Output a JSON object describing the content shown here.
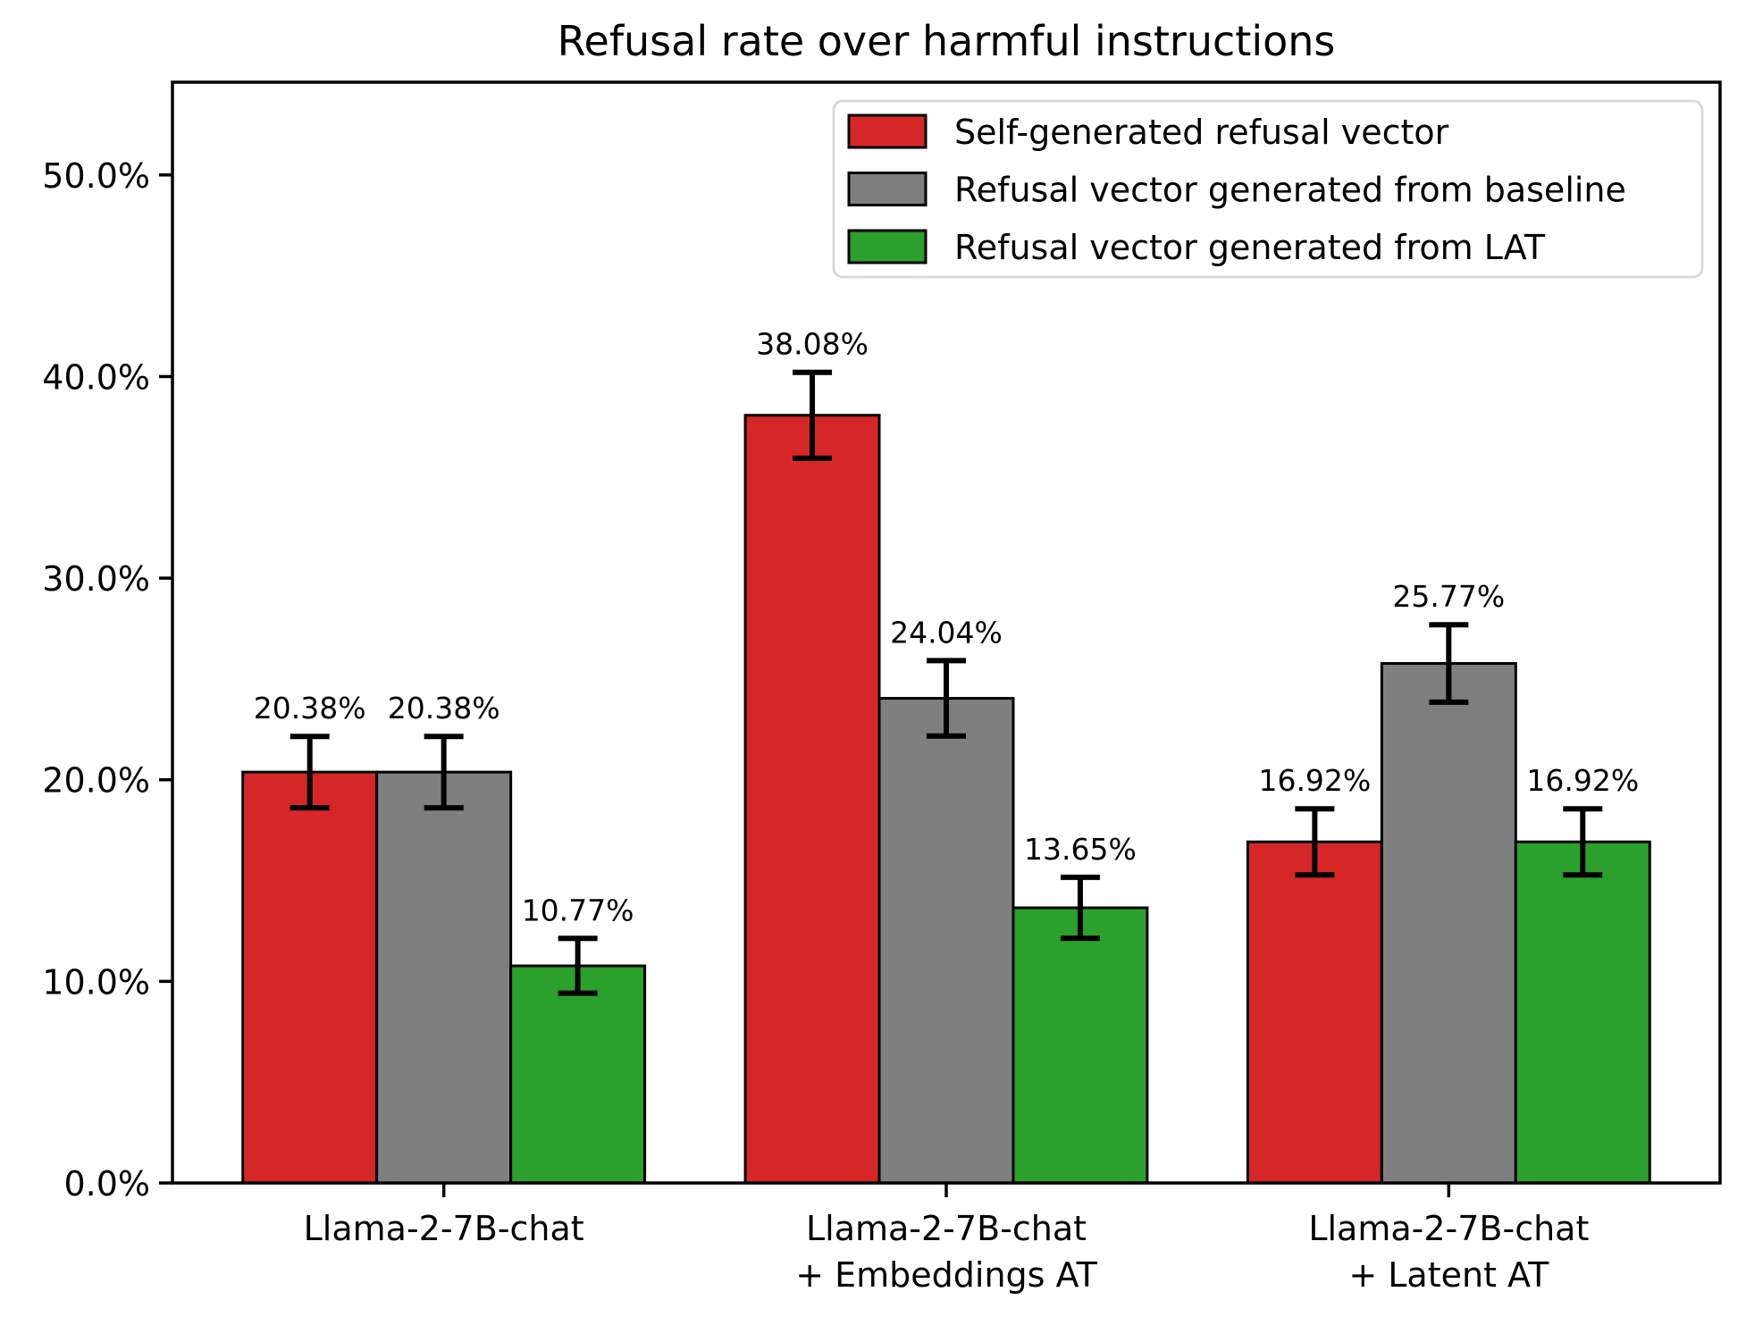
{
  "chart_data": {
    "type": "bar",
    "title": "Refusal rate over harmful instructions",
    "categories": [
      [
        "Llama-2-7B-chat"
      ],
      [
        "Llama-2-7B-chat",
        "+ Embeddings AT"
      ],
      [
        "Llama-2-7B-chat",
        "+ Latent AT"
      ]
    ],
    "series": [
      {
        "name": "Self-generated refusal vector",
        "color": "#d62728",
        "values": [
          20.38,
          38.08,
          16.92
        ],
        "errors": [
          1.77,
          2.13,
          1.64
        ],
        "labels": [
          "20.38%",
          "38.08%",
          "16.92%"
        ]
      },
      {
        "name": "Refusal vector generated from baseline",
        "color": "#7f7f7f",
        "values": [
          20.38,
          24.04,
          25.77
        ],
        "errors": [
          1.77,
          1.87,
          1.92
        ],
        "labels": [
          "20.38%",
          "24.04%",
          "25.77%"
        ]
      },
      {
        "name": "Refusal vector generated from LAT",
        "color": "#2ca02c",
        "values": [
          10.77,
          13.65,
          16.92
        ],
        "errors": [
          1.36,
          1.51,
          1.64
        ],
        "labels": [
          "10.77%",
          "13.65%",
          "16.92%"
        ]
      }
    ],
    "xlabel": "",
    "ylabel": "",
    "ylim": [
      0,
      54.6
    ],
    "yticks": {
      "values": [
        0,
        10,
        20,
        30,
        40,
        50
      ],
      "labels": [
        "0.0%",
        "10.0%",
        "20.0%",
        "30.0%",
        "40.0%",
        "50.0%"
      ]
    },
    "grid": false,
    "legend": {
      "position": "upper right",
      "background": "#ffffff",
      "border_color": "#d9d9d9"
    },
    "colors": {
      "bar_edge": "#000000",
      "error_bar": "#000000",
      "spine": "#000000",
      "text": "#000000"
    }
  }
}
